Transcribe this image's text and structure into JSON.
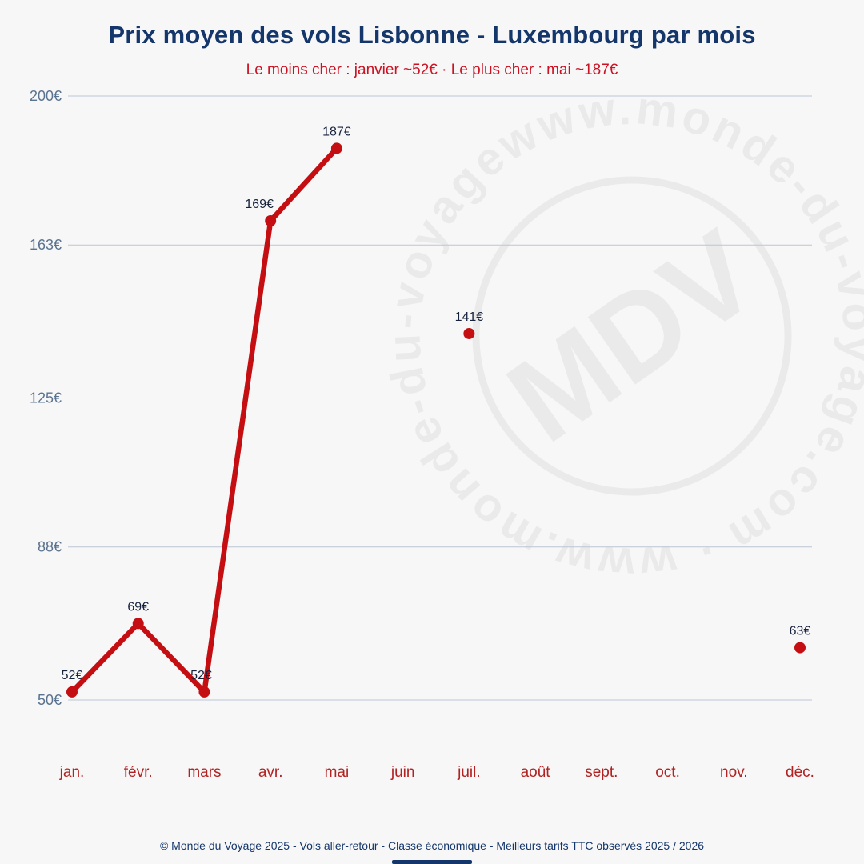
{
  "header": {
    "title": "Prix moyen des vols Lisbonne - Luxembourg par mois",
    "subtitle": "Le moins cher : janvier ~52€ · Le plus cher : mai ~187€"
  },
  "watermark": {
    "ring_text": "www.monde-du-voyage.com · www.monde-du-voyage.com ·",
    "initials": "MDV"
  },
  "footer": {
    "text": "© Monde du Voyage 2025 - Vols aller-retour - Classe économique - Meilleurs tarifs TTC observés 2025 / 2026"
  },
  "colors": {
    "title": "#14366b",
    "subtitle_red": "#cc1122",
    "month_label": "#b22222",
    "axis_label": "#5a7390",
    "grid": "#bcc6d4",
    "line": "#c40e12",
    "point_label": "#16213c",
    "background": "#f7f7f7",
    "footer_text": "#14366b"
  },
  "chart_data": {
    "type": "line",
    "title": "Prix moyen des vols Lisbonne - Luxembourg par mois",
    "subtitle": "Le moins cher : janvier ~52€ · Le plus cher : mai ~187€",
    "categories": [
      "jan.",
      "févr.",
      "mars",
      "avr.",
      "mai",
      "juin",
      "juil.",
      "août",
      "sept.",
      "oct.",
      "nov.",
      "déc."
    ],
    "values": [
      52,
      69,
      52,
      169,
      187,
      null,
      141,
      null,
      null,
      null,
      null,
      63
    ],
    "point_labels": [
      "52€",
      "69€",
      "52€",
      "169€",
      "187€",
      null,
      "141€",
      null,
      null,
      null,
      null,
      "63€"
    ],
    "label_dx": [
      0,
      0,
      -4,
      -14,
      0,
      0,
      0,
      0,
      0,
      0,
      0,
      0
    ],
    "xlabel": "",
    "ylabel": "",
    "ylim": [
      50,
      200
    ],
    "yticks": [
      200,
      163,
      125,
      88,
      50
    ],
    "ytick_labels": [
      "200€",
      "163€",
      "125€",
      "88€",
      "50€"
    ],
    "grid": true,
    "legend": "none",
    "line_color": "#c40e12",
    "cheapest": {
      "month": "janvier",
      "value": 52
    },
    "most_expensive": {
      "month": "mai",
      "value": 187
    }
  }
}
